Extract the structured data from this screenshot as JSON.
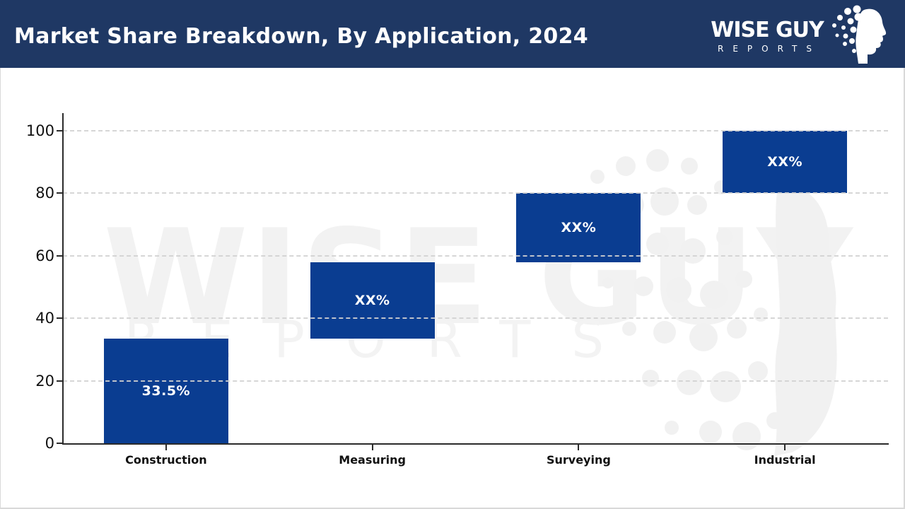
{
  "header": {
    "title": "Market Share Breakdown, By Application, 2024",
    "logo": {
      "line1": "WISE GUY",
      "line2": "REPORTS"
    }
  },
  "watermark": {
    "line1": "WISE GUY",
    "line2": "REPORTS"
  },
  "colors": {
    "header_bg": "#1f3864",
    "bar": "#0a3d91",
    "grid": "#d2d2d2",
    "axis": "#2b2b2b",
    "watermark": "#f2f2f2",
    "bar_label": "#ffffff",
    "tick_label": "#111111"
  },
  "chart_data": {
    "type": "bar",
    "subtype": "floating-waterfall",
    "title": "Market Share Breakdown, By Application, 2024",
    "categories": [
      "Construction",
      "Measuring",
      "Surveying",
      "Industrial"
    ],
    "segments": [
      {
        "category": "Construction",
        "start": 0,
        "end": 33.5,
        "label": "33.5%",
        "value": 33.5
      },
      {
        "category": "Measuring",
        "start": 33.5,
        "end": 58,
        "label": "XX%",
        "value": 24.5
      },
      {
        "category": "Surveying",
        "start": 58,
        "end": 80,
        "label": "XX%",
        "value": 22
      },
      {
        "category": "Industrial",
        "start": 80,
        "end": 100,
        "label": "XX%",
        "value": 20
      }
    ],
    "value_labels": [
      "33.5%",
      "XX%",
      "XX%",
      "XX%"
    ],
    "xlabel": "",
    "ylabel": "",
    "ylim": [
      0,
      100
    ],
    "yticks": [
      0,
      20,
      40,
      60,
      80,
      100
    ],
    "grid": "horizontal-dashed",
    "legend_visible": false
  }
}
